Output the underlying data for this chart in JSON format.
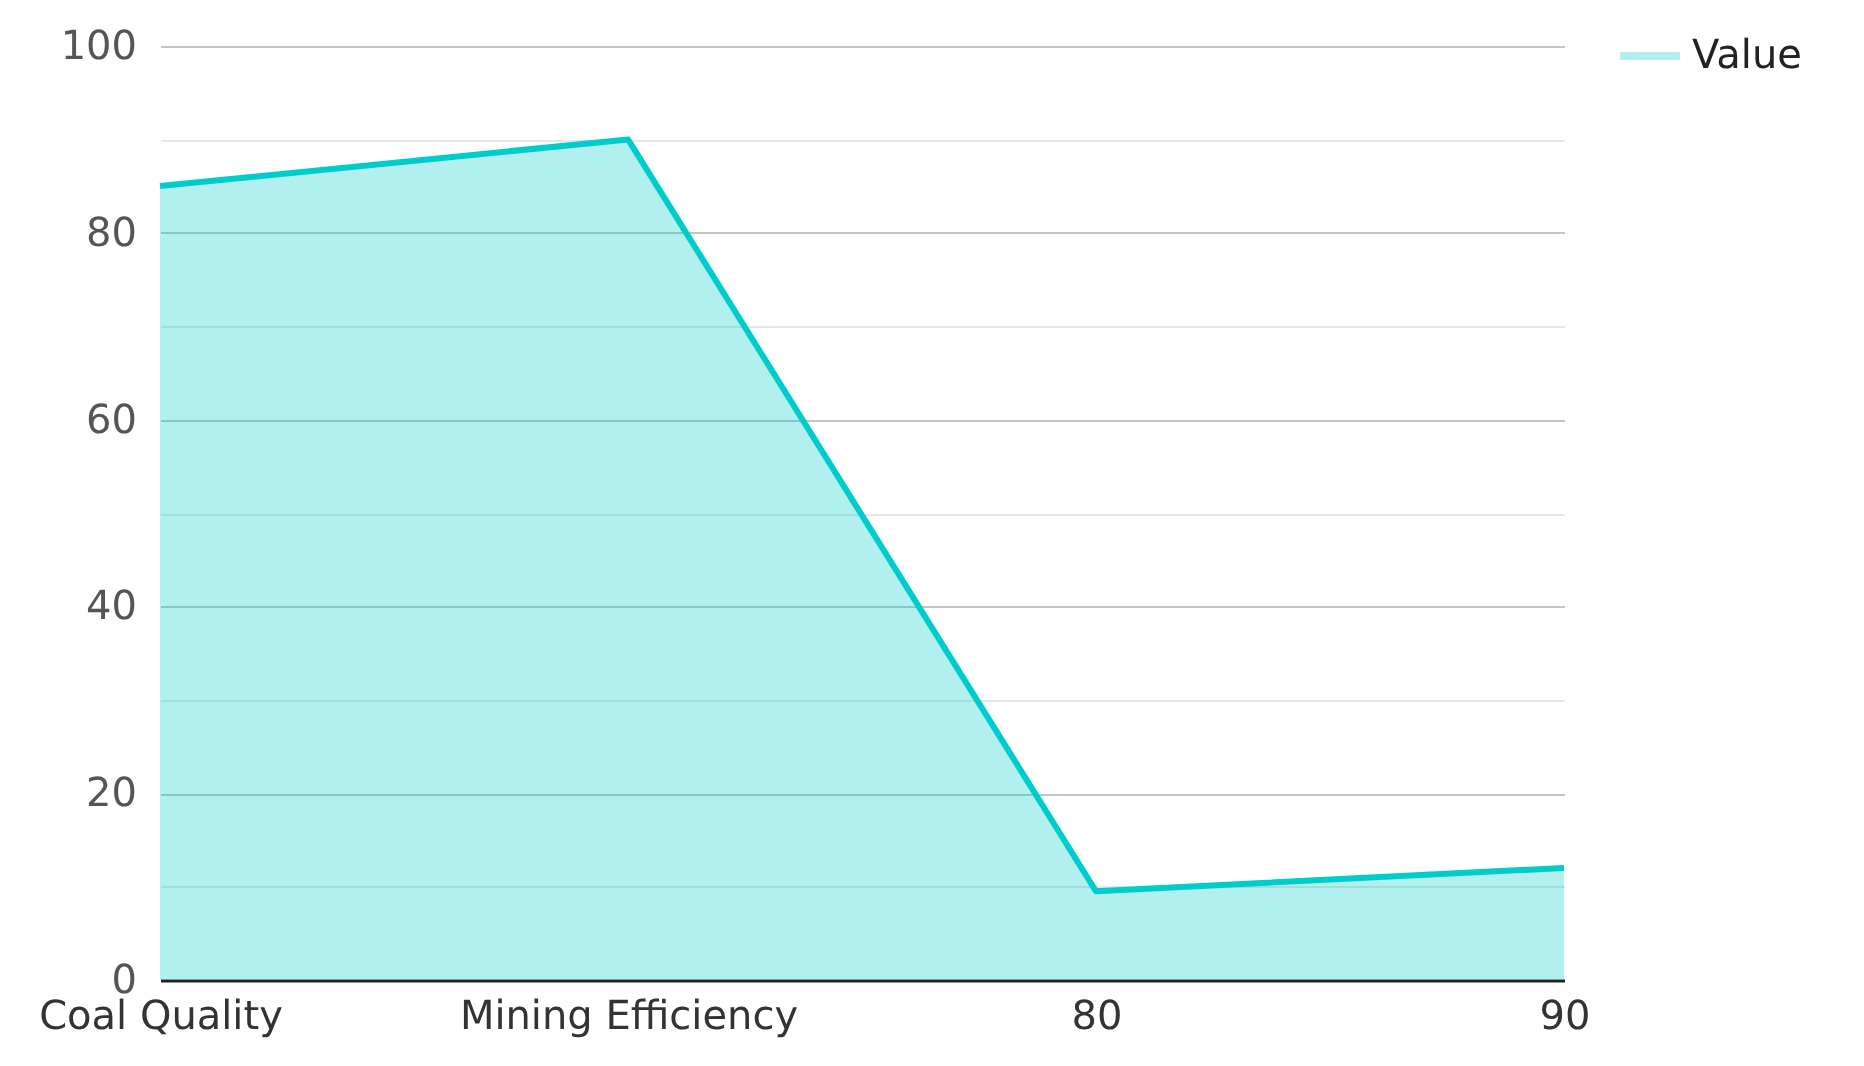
{
  "chart_data": {
    "type": "area",
    "categories": [
      "Coal Quality",
      "Mining Efficiency",
      "80",
      "90"
    ],
    "series": [
      {
        "name": "Value",
        "color": "#00cccc",
        "values": [
          85,
          90,
          9.5,
          12
        ]
      }
    ],
    "ylim": [
      0,
      100
    ],
    "yticks": [
      0,
      {
        "value": 10,
        "label": null
      },
      20,
      {
        "value": 30,
        "label": null
      },
      40,
      {
        "value": 50,
        "label": null
      },
      60,
      {
        "value": 70,
        "label": null
      },
      80,
      {
        "value": 90,
        "label": null
      },
      100
    ],
    "grid": "y",
    "legend": "top right"
  }
}
